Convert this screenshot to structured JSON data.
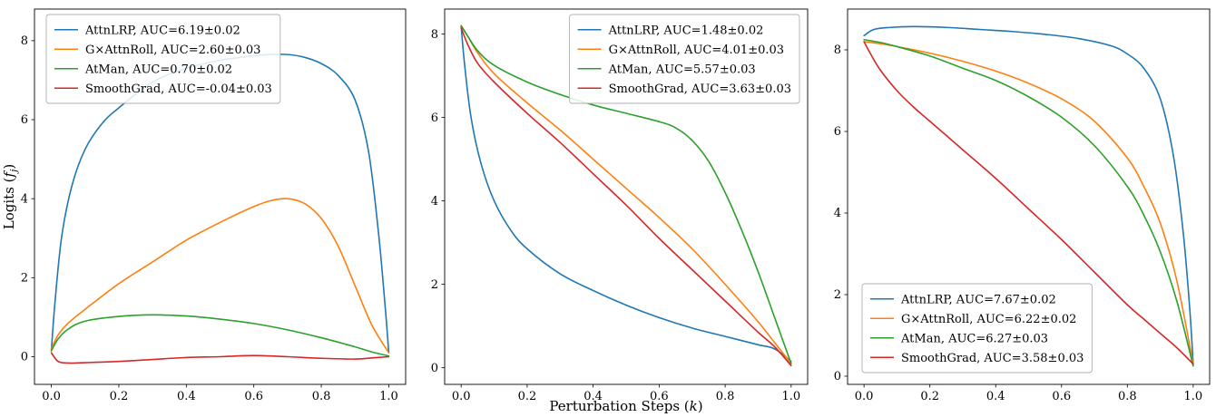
{
  "figure": {
    "background": "#ffffff",
    "xlabel": "Perturbation Steps ($k$)",
    "ylabel": "Logits ($f_j$)"
  },
  "chart_data": [
    {
      "type": "line",
      "title": "",
      "grid": false,
      "xlim": [
        -0.05,
        1.05
      ],
      "ylim": [
        -0.7,
        8.8
      ],
      "xticks": {
        "values": [
          0,
          0.2,
          0.4,
          0.6,
          0.8,
          1.0
        ],
        "labels": [
          "0.0",
          "0.2",
          "0.4",
          "0.6",
          "0.8",
          "1.0"
        ]
      },
      "yticks": {
        "values": [
          0,
          2,
          4,
          6,
          8
        ],
        "labels": [
          "0",
          "2",
          "4",
          "6",
          "8"
        ]
      },
      "legend": {
        "position": "upper left"
      },
      "series": [
        {
          "name": "AttnLRP",
          "label": "AttnLRP, AUC=6.19±0.02",
          "auc": "6.19±0.02",
          "color": "#1f77b4",
          "x": [
            0,
            0.01,
            0.03,
            0.06,
            0.1,
            0.15,
            0.2,
            0.3,
            0.4,
            0.5,
            0.6,
            0.65,
            0.7,
            0.75,
            0.8,
            0.85,
            0.9,
            0.94,
            0.97,
            0.99,
            1.0
          ],
          "y": [
            0.15,
            1.3,
            3.0,
            4.3,
            5.25,
            5.9,
            6.3,
            6.95,
            7.3,
            7.5,
            7.62,
            7.65,
            7.65,
            7.58,
            7.42,
            7.12,
            6.5,
            5.2,
            3.1,
            1.2,
            0.1
          ]
        },
        {
          "name": "G×AttnRoll",
          "label": "G×AttnRoll, AUC=2.60±0.03",
          "auc": "2.60±0.03",
          "color": "#ff7f0e",
          "x": [
            0,
            0.02,
            0.05,
            0.1,
            0.2,
            0.3,
            0.4,
            0.5,
            0.6,
            0.65,
            0.7,
            0.75,
            0.8,
            0.85,
            0.9,
            0.95,
            1.0
          ],
          "y": [
            0.2,
            0.55,
            0.85,
            1.2,
            1.85,
            2.4,
            2.95,
            3.4,
            3.8,
            3.95,
            4.0,
            3.88,
            3.5,
            2.8,
            1.8,
            0.8,
            0.1
          ]
        },
        {
          "name": "AtMan",
          "label": "AtMan, AUC=0.70±0.02",
          "auc": "0.70±0.02",
          "color": "#2ca02c",
          "x": [
            0,
            0.02,
            0.05,
            0.1,
            0.2,
            0.3,
            0.4,
            0.5,
            0.6,
            0.7,
            0.8,
            0.9,
            0.95,
            1.0
          ],
          "y": [
            0.15,
            0.45,
            0.7,
            0.9,
            1.02,
            1.06,
            1.03,
            0.95,
            0.84,
            0.68,
            0.48,
            0.25,
            0.12,
            0.02
          ]
        },
        {
          "name": "SmoothGrad",
          "label": "SmoothGrad, AUC=-0.04±0.03",
          "auc": "-0.04±0.03",
          "color": "#d62728",
          "x": [
            0,
            0.02,
            0.05,
            0.1,
            0.2,
            0.3,
            0.4,
            0.5,
            0.6,
            0.7,
            0.8,
            0.9,
            0.95,
            1.0
          ],
          "y": [
            0.1,
            -0.12,
            -0.16,
            -0.15,
            -0.12,
            -0.07,
            -0.02,
            0,
            0.03,
            0,
            -0.04,
            -0.06,
            -0.03,
            0
          ]
        }
      ]
    },
    {
      "type": "line",
      "title": "",
      "grid": false,
      "xlim": [
        -0.05,
        1.05
      ],
      "ylim": [
        -0.4,
        8.6
      ],
      "xticks": {
        "values": [
          0,
          0.2,
          0.4,
          0.6,
          0.8,
          1.0
        ],
        "labels": [
          "0.0",
          "0.2",
          "0.4",
          "0.6",
          "0.8",
          "1.0"
        ]
      },
      "yticks": {
        "values": [
          0,
          2,
          4,
          6,
          8
        ],
        "labels": [
          "0",
          "2",
          "4",
          "6",
          "8"
        ]
      },
      "legend": {
        "position": "upper right"
      },
      "series": [
        {
          "name": "AttnLRP",
          "label": "AttnLRP, AUC=1.48±0.02",
          "auc": "1.48±0.02",
          "color": "#1f77b4",
          "x": [
            0,
            0.01,
            0.03,
            0.06,
            0.1,
            0.15,
            0.2,
            0.3,
            0.4,
            0.5,
            0.6,
            0.7,
            0.8,
            0.9,
            0.95,
            1.0
          ],
          "y": [
            8.2,
            7.3,
            6.0,
            4.9,
            4.0,
            3.3,
            2.85,
            2.25,
            1.85,
            1.5,
            1.2,
            0.95,
            0.75,
            0.55,
            0.45,
            0.15
          ]
        },
        {
          "name": "G×AttnRoll",
          "label": "G×AttnRoll, AUC=4.01±0.03",
          "auc": "4.01±0.03",
          "color": "#ff7f0e",
          "x": [
            0,
            0.02,
            0.05,
            0.1,
            0.2,
            0.3,
            0.4,
            0.5,
            0.6,
            0.7,
            0.8,
            0.9,
            0.95,
            1.0
          ],
          "y": [
            8.2,
            7.95,
            7.55,
            7.05,
            6.35,
            5.7,
            5.0,
            4.3,
            3.6,
            2.85,
            2.0,
            1.1,
            0.6,
            0.1
          ]
        },
        {
          "name": "AtMan",
          "label": "AtMan, AUC=5.57±0.03",
          "auc": "5.57±0.03",
          "color": "#2ca02c",
          "x": [
            0,
            0.02,
            0.05,
            0.1,
            0.2,
            0.3,
            0.4,
            0.5,
            0.6,
            0.65,
            0.7,
            0.75,
            0.8,
            0.85,
            0.9,
            0.95,
            1.0
          ],
          "y": [
            8.2,
            7.95,
            7.6,
            7.25,
            6.85,
            6.55,
            6.3,
            6.1,
            5.9,
            5.75,
            5.45,
            4.95,
            4.2,
            3.3,
            2.3,
            1.2,
            0.1
          ]
        },
        {
          "name": "SmoothGrad",
          "label": "SmoothGrad, AUC=3.63±0.03",
          "auc": "3.63±0.03",
          "color": "#d62728",
          "x": [
            0,
            0.02,
            0.05,
            0.1,
            0.2,
            0.3,
            0.4,
            0.5,
            0.6,
            0.7,
            0.8,
            0.9,
            0.95,
            1.0
          ],
          "y": [
            8.15,
            7.75,
            7.3,
            6.85,
            6.1,
            5.4,
            4.65,
            3.9,
            3.1,
            2.35,
            1.6,
            0.85,
            0.5,
            0.05
          ]
        }
      ]
    },
    {
      "type": "line",
      "title": "",
      "grid": false,
      "xlim": [
        -0.05,
        1.05
      ],
      "ylim": [
        -0.2,
        9.0
      ],
      "xticks": {
        "values": [
          0,
          0.2,
          0.4,
          0.6,
          0.8,
          1.0
        ],
        "labels": [
          "0.0",
          "0.2",
          "0.4",
          "0.6",
          "0.8",
          "1.0"
        ]
      },
      "yticks": {
        "values": [
          0,
          2,
          4,
          6,
          8
        ],
        "labels": [
          "0",
          "2",
          "4",
          "6",
          "8"
        ]
      },
      "legend": {
        "position": "lower left"
      },
      "series": [
        {
          "name": "AttnLRP",
          "label": "AttnLRP, AUC=7.67±0.02",
          "auc": "7.67±0.02",
          "color": "#1f77b4",
          "x": [
            0,
            0.03,
            0.08,
            0.15,
            0.25,
            0.35,
            0.45,
            0.55,
            0.65,
            0.75,
            0.8,
            0.85,
            0.9,
            0.94,
            0.97,
            0.99,
            1.0
          ],
          "y": [
            8.35,
            8.5,
            8.55,
            8.57,
            8.55,
            8.5,
            8.45,
            8.38,
            8.28,
            8.1,
            7.9,
            7.55,
            6.8,
            5.4,
            3.5,
            1.6,
            0.3
          ]
        },
        {
          "name": "G×AttnRoll",
          "label": "G×AttnRoll, AUC=6.22±0.02",
          "auc": "6.22±0.02",
          "color": "#ff7f0e",
          "x": [
            0,
            0.05,
            0.1,
            0.2,
            0.3,
            0.4,
            0.5,
            0.6,
            0.7,
            0.8,
            0.85,
            0.9,
            0.95,
            1.0
          ],
          "y": [
            8.2,
            8.15,
            8.08,
            7.92,
            7.72,
            7.48,
            7.18,
            6.8,
            6.25,
            5.35,
            4.65,
            3.75,
            2.35,
            0.3
          ]
        },
        {
          "name": "AtMan",
          "label": "AtMan, AUC=6.27±0.03",
          "auc": "6.27±0.03",
          "color": "#2ca02c",
          "x": [
            0,
            0.05,
            0.1,
            0.2,
            0.3,
            0.4,
            0.5,
            0.6,
            0.7,
            0.8,
            0.85,
            0.9,
            0.95,
            1.0
          ],
          "y": [
            8.25,
            8.18,
            8.08,
            7.85,
            7.55,
            7.25,
            6.85,
            6.35,
            5.65,
            4.65,
            3.95,
            3.05,
            1.85,
            0.25
          ]
        },
        {
          "name": "SmoothGrad",
          "label": "SmoothGrad, AUC=3.58±0.03",
          "auc": "3.58±0.03",
          "color": "#d62728",
          "x": [
            0,
            0.02,
            0.05,
            0.1,
            0.15,
            0.2,
            0.3,
            0.4,
            0.5,
            0.6,
            0.7,
            0.8,
            0.85,
            0.9,
            0.95,
            1.0
          ],
          "y": [
            8.2,
            7.9,
            7.5,
            7.0,
            6.6,
            6.25,
            5.55,
            4.85,
            4.1,
            3.35,
            2.55,
            1.75,
            1.4,
            1.05,
            0.7,
            0.3
          ]
        }
      ]
    }
  ]
}
